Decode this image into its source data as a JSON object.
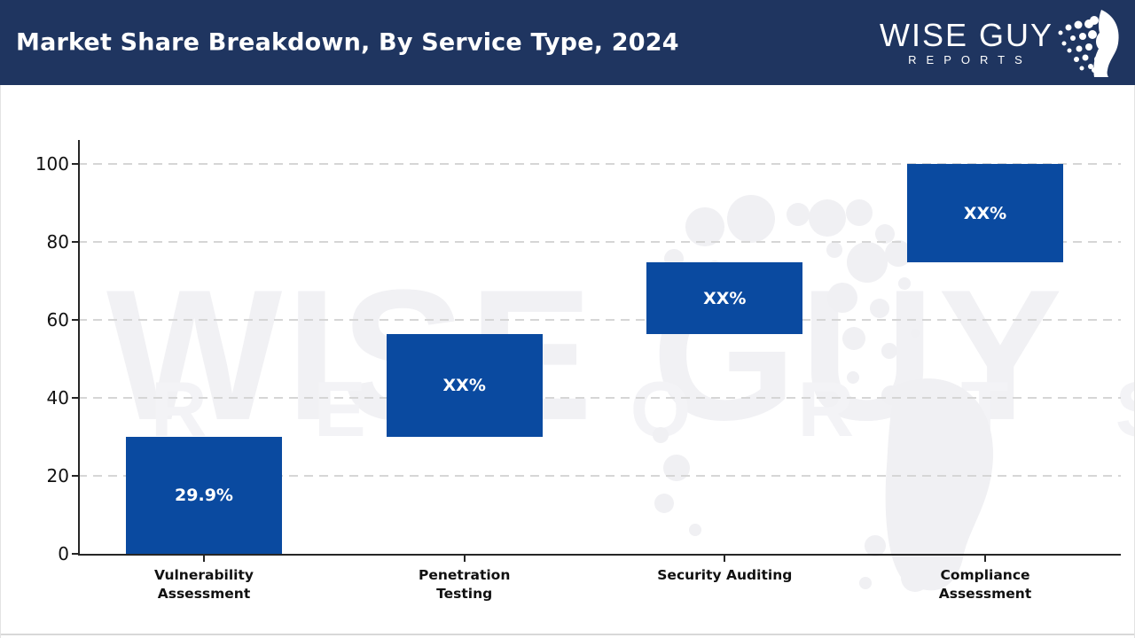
{
  "header": {
    "title": "Market Share Breakdown, By Service Type, 2024"
  },
  "logo": {
    "line1": "WISE GUY",
    "line2": "REPORTS"
  },
  "watermark": {
    "line1": "WISE GUY",
    "line2": "R E P O R T S"
  },
  "colors": {
    "header_bg": "#1f3560",
    "bar_color": "#0a4aa0",
    "title_color": "#ffffff",
    "axis_color": "#262626",
    "grid_color": "#d6d6d6",
    "watermark_color": "#f1f1f4"
  },
  "chart_data": {
    "type": "bar",
    "subtype": "waterfall",
    "title": "Market Share Breakdown, By Service Type, 2024",
    "xlabel": "",
    "ylabel": "",
    "categories": [
      "Vulnerability\nAssessment",
      "Penetration\nTesting",
      "Security Auditing",
      "Compliance\nAssessment"
    ],
    "segments": [
      {
        "category": "Vulnerability Assessment",
        "start": 0,
        "end": 29.9,
        "value_label": "29.9%"
      },
      {
        "category": "Penetration Testing",
        "start": 29.9,
        "end": 56.4,
        "value_label": "XX%"
      },
      {
        "category": "Security Auditing",
        "start": 56.4,
        "end": 74.7,
        "value_label": "XX%"
      },
      {
        "category": "Compliance Assessment",
        "start": 74.7,
        "end": 100,
        "value_label": "XX%"
      }
    ],
    "yticks": [
      0,
      20,
      40,
      60,
      80,
      100
    ],
    "ylim": [
      0,
      105
    ],
    "grid": "horizontal-dashed",
    "legend": "none",
    "bar_color": "#0a4aa0"
  }
}
